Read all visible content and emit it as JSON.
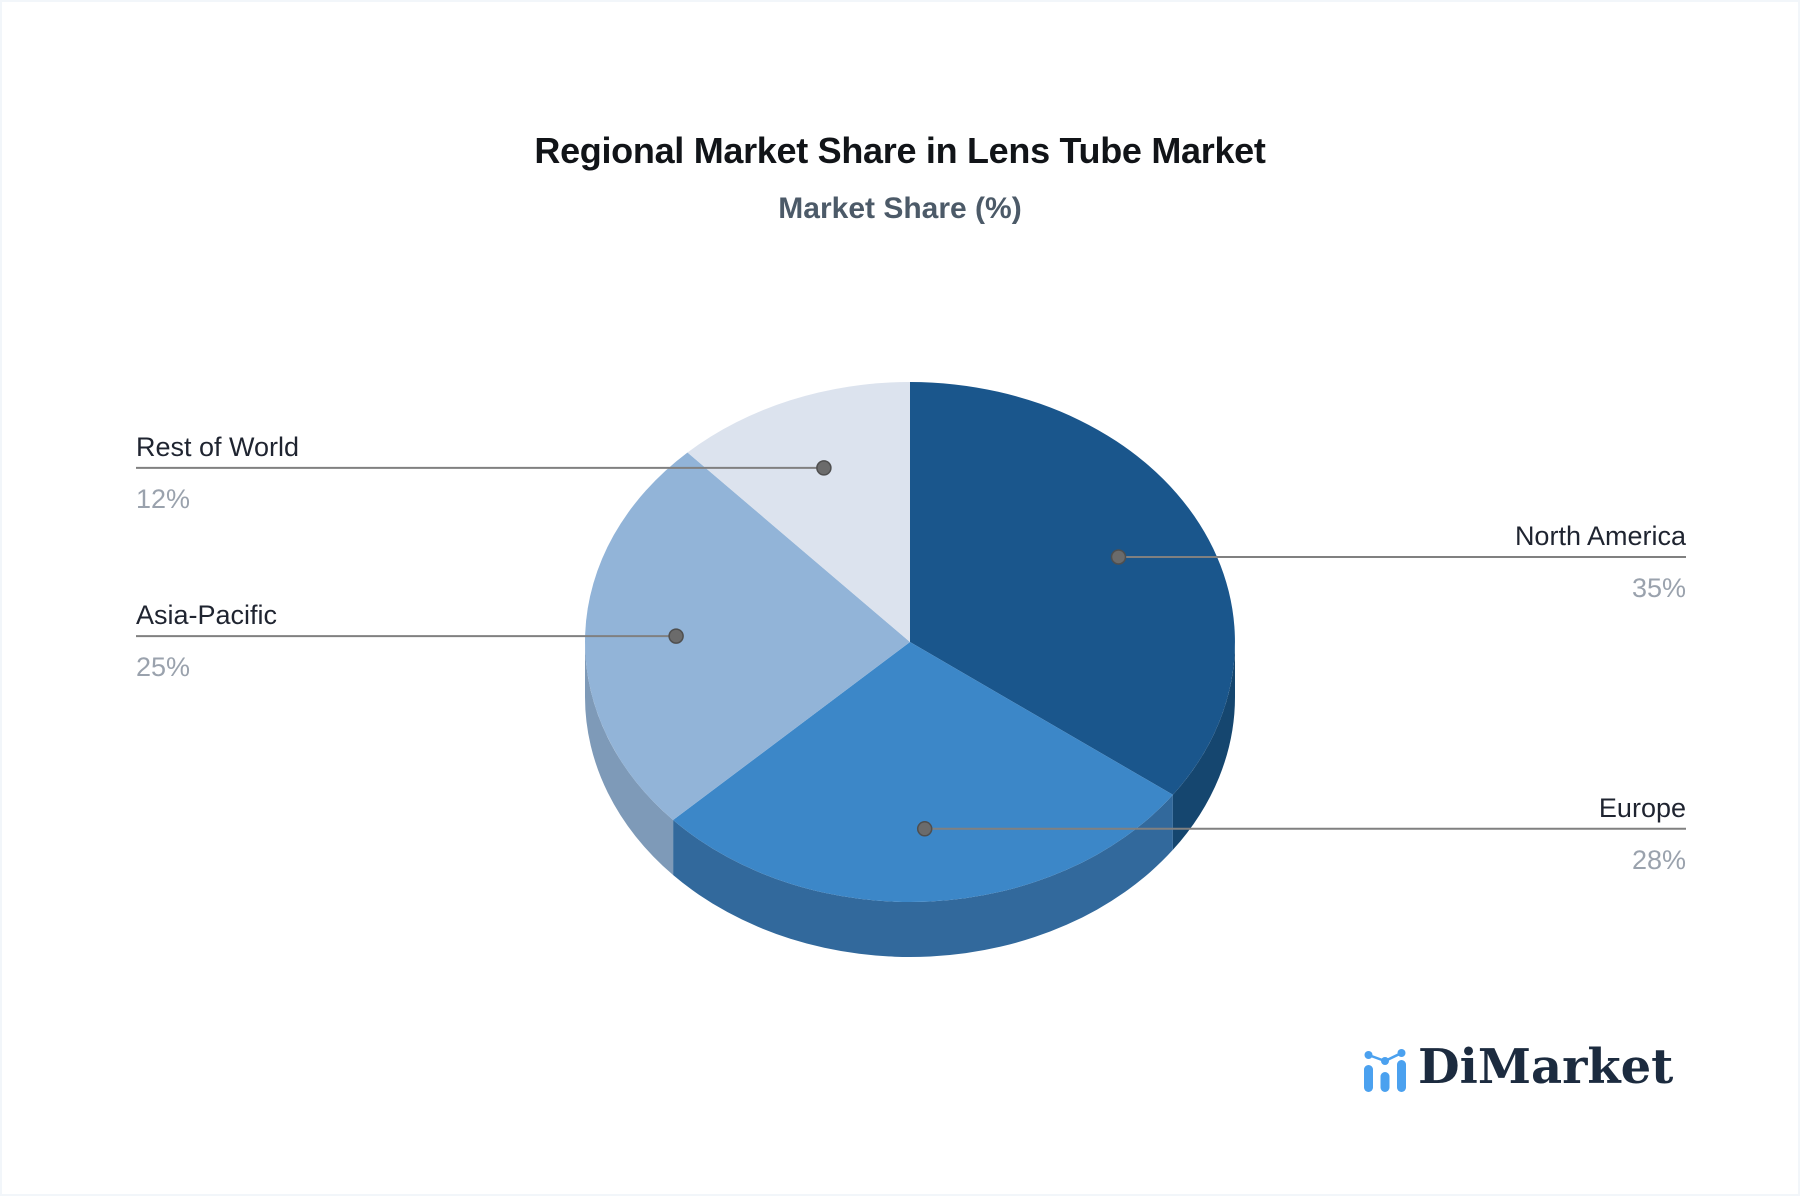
{
  "header": {
    "title": "Regional Market Share in Lens Tube Market",
    "subtitle": "Market Share (%)"
  },
  "branding": {
    "name": "DiMarket",
    "icon": "bar-line-chart-icon",
    "icon_color": "#4BA1EF",
    "text_color": "#1C2B3F"
  },
  "chart_data": {
    "type": "pie",
    "style": "3d",
    "title": "Regional Market Share in Lens Tube Market",
    "subtitle": "Market Share (%)",
    "unit": "%",
    "start_angle_deg": -90,
    "direction": "clockwise",
    "legend_position": "callout-labels",
    "label_color": "#1F2430",
    "value_color": "#9AA2AD",
    "leader_color": "#808080",
    "slices": [
      {
        "label": "North America",
        "value": 35,
        "display": "35%",
        "color": "#1A568C",
        "side_color": "#15466F",
        "callout_side": "right"
      },
      {
        "label": "Europe",
        "value": 28,
        "display": "28%",
        "color": "#3C87C8",
        "side_color": "#32699C",
        "callout_side": "right"
      },
      {
        "label": "Asia-Pacific",
        "value": 25,
        "display": "25%",
        "color": "#92B4D8",
        "side_color": "#7E9AB8",
        "callout_side": "left"
      },
      {
        "label": "Rest of World",
        "value": 12,
        "display": "12%",
        "color": "#DCE3EE",
        "side_color": "#C2CBD9",
        "callout_side": "left"
      }
    ]
  }
}
